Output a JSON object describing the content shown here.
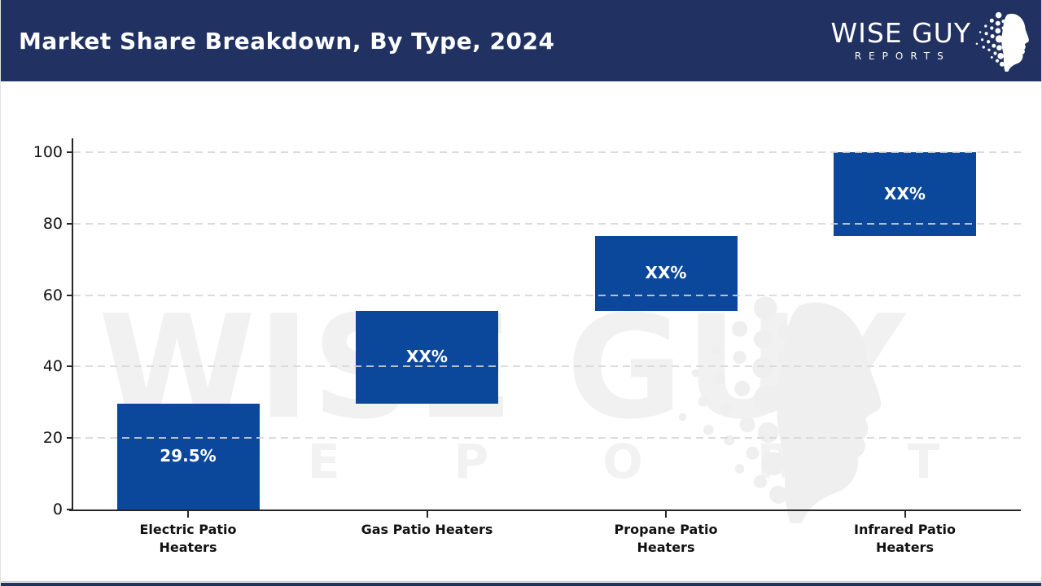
{
  "header": {
    "title": "Market Share Breakdown, By Type, 2024",
    "logo": {
      "line1": "WISE GUY",
      "line2": "REPORTS"
    }
  },
  "watermark": {
    "line1": "WISE GUY",
    "line2": "R E P O R T S"
  },
  "colors": {
    "header_bg": "#203162",
    "footer_bg": "#203162",
    "bar": "#0b479b",
    "bar_label_text": "#ffffff",
    "grid": "#d6d6d6",
    "axis": "#262626",
    "tick_text": "#111111",
    "watermark": "#f1f1f1"
  },
  "chart_data": {
    "type": "bar",
    "subtype": "floating-waterfall",
    "title": "Market Share Breakdown, By Type, 2024",
    "xlabel": "",
    "ylabel": "",
    "ylim": [
      0,
      105
    ],
    "yticks": [
      0,
      20,
      40,
      60,
      80,
      100
    ],
    "grid": "horizontal-dashed-over-bars",
    "legend": "none",
    "categories": [
      "Electric Patio Heaters",
      "Gas Patio Heaters",
      "Propane Patio Heaters",
      "Infrared Patio Heaters"
    ],
    "bars": [
      {
        "category": "Electric Patio Heaters",
        "label_lines": [
          "Electric Patio",
          "Heaters"
        ],
        "start": 0,
        "end": 29.5,
        "value_label": "29.5%"
      },
      {
        "category": "Gas Patio Heaters",
        "label_lines": [
          "Gas Patio Heaters"
        ],
        "start": 29.5,
        "end": 55.5,
        "value_label": "XX%"
      },
      {
        "category": "Propane Patio Heaters",
        "label_lines": [
          "Propane Patio",
          "Heaters"
        ],
        "start": 55.5,
        "end": 76.5,
        "value_label": "XX%"
      },
      {
        "category": "Infrared Patio Heaters",
        "label_lines": [
          "Infrared Patio",
          "Heaters"
        ],
        "start": 76.5,
        "end": 100,
        "value_label": "XX%"
      }
    ]
  }
}
